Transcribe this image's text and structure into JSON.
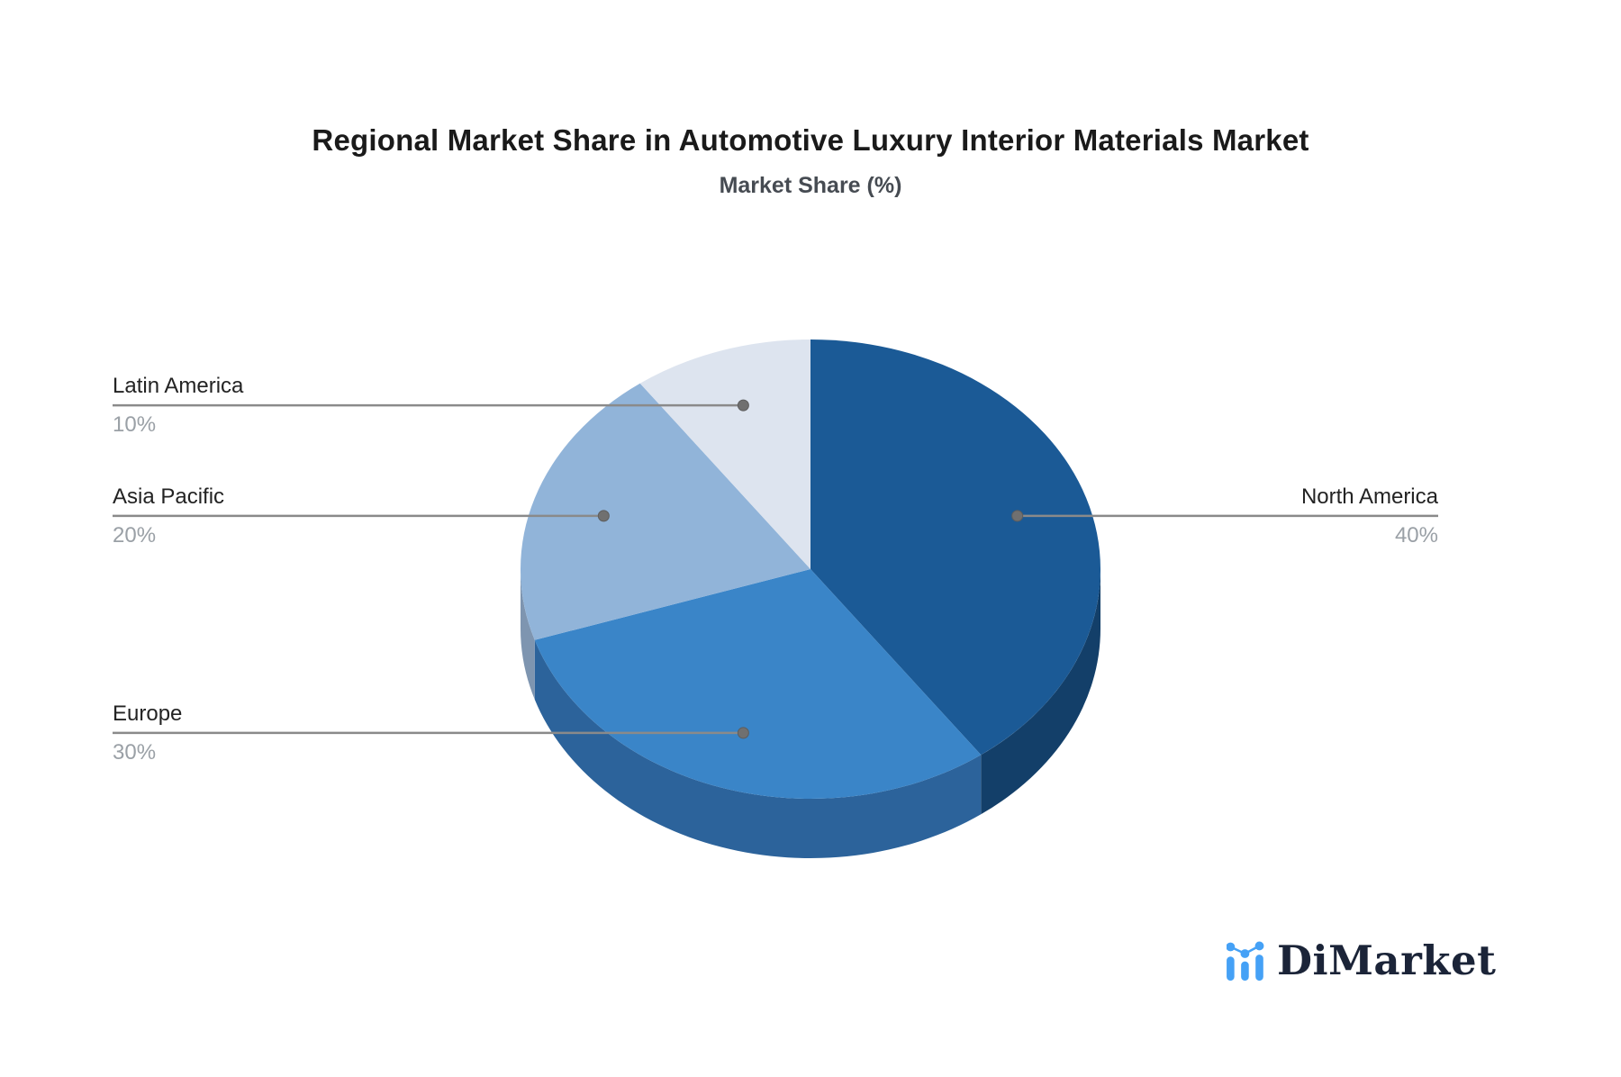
{
  "chart_data": {
    "type": "pie",
    "style": "pseudo-3d",
    "title": "Regional Market Share in Automotive Luxury Interior Materials Market",
    "subtitle": "Market Share (%)",
    "unit": "%",
    "start_angle_deg": 0,
    "direction": "clockwise",
    "legend_position": "none",
    "slices": [
      {
        "label": "North America",
        "value": 40,
        "pct_label": "40%",
        "color": "#1b5a96",
        "side_color": "#133f69"
      },
      {
        "label": "Europe",
        "value": 30,
        "pct_label": "30%",
        "color": "#3a85c8",
        "side_color": "#2c639b"
      },
      {
        "label": "Asia Pacific",
        "value": 20,
        "pct_label": "20%",
        "color": "#91b4d9",
        "side_color": "#7e95b0"
      },
      {
        "label": "Latin America",
        "value": 10,
        "pct_label": "10%",
        "color": "#dde4ef",
        "side_color": "#b9c6d9"
      }
    ],
    "label_style": {
      "line_color": "#8a8a8a",
      "dot_color": "#707070",
      "name_color": "#232323",
      "pct_color": "#9aa0a6"
    }
  },
  "brand": {
    "name": "DiMarket",
    "accent": "#45a1f6",
    "text_color": "#1b2438"
  }
}
